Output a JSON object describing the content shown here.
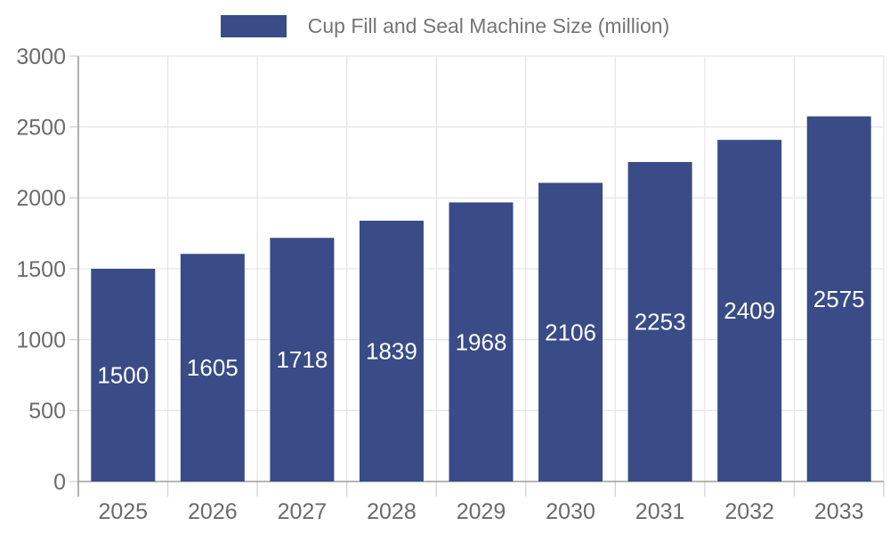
{
  "chart_data": {
    "type": "bar",
    "title": "Cup Fill and Seal Machine Size (million)",
    "categories": [
      "2025",
      "2026",
      "2027",
      "2028",
      "2029",
      "2030",
      "2031",
      "2032",
      "2033"
    ],
    "values": [
      1500,
      1605,
      1718,
      1839,
      1968,
      2106,
      2253,
      2409,
      2575
    ],
    "xlabel": "",
    "ylabel": "",
    "ylim": [
      0,
      3000
    ],
    "ytick_step": 500,
    "grid": true,
    "legend_position": "top",
    "value_label_position": "inside-center"
  },
  "colors": {
    "bar": "#394c87",
    "grid": "#e6e6e9",
    "axis": "#9d9da1",
    "tick": "#d2d2d6",
    "tick_label": "#6b6b6b",
    "legend_text": "#757575",
    "value_label": "#ffffff",
    "background": "#ffffff"
  }
}
